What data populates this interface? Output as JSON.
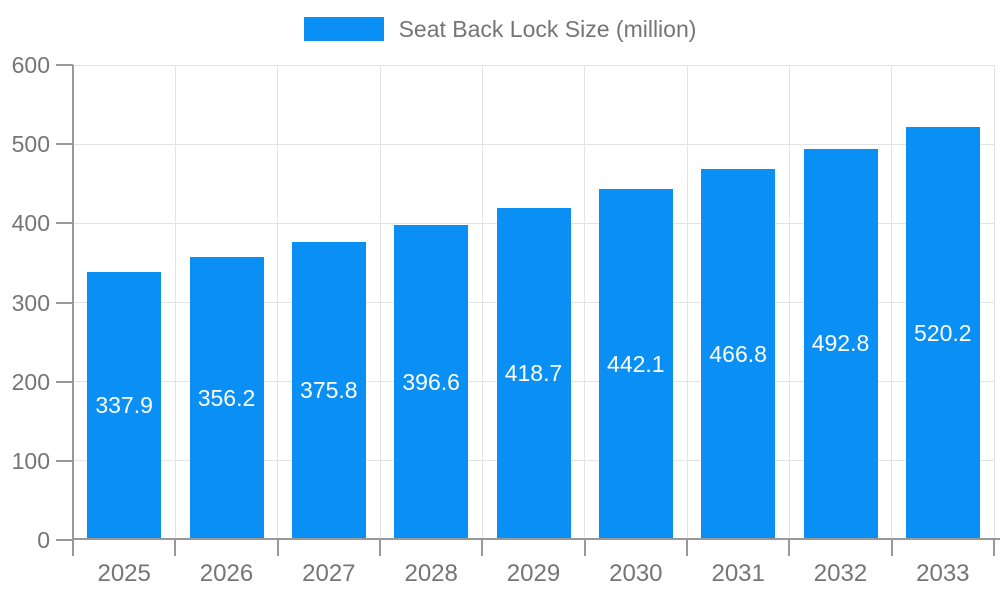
{
  "chart_data": {
    "type": "bar",
    "title": "Seat Back Lock Size (million)",
    "legend_position": "top",
    "categories": [
      "2025",
      "2026",
      "2027",
      "2028",
      "2029",
      "2030",
      "2031",
      "2032",
      "2033"
    ],
    "series": [
      {
        "name": "Seat Back Lock Size (million)",
        "values": [
          337.9,
          356.2,
          375.8,
          396.6,
          418.7,
          442.1,
          466.8,
          492.8,
          520.2
        ]
      }
    ],
    "value_labels": [
      "337.9",
      "356.2",
      "375.8",
      "396.6",
      "418.7",
      "442.1",
      "466.8",
      "492.8",
      "520.2"
    ],
    "xlabel": "",
    "ylabel": "",
    "ylim": [
      0,
      600
    ],
    "yticks": [
      0,
      100,
      200,
      300,
      400,
      500,
      600
    ],
    "grid": "on",
    "colors": {
      "bar": "#0a90f5",
      "axis": "#999999",
      "tick_label": "#757575",
      "grid": "#e3e3e3",
      "value_label": "#ffffff",
      "background": "#ffffff"
    }
  }
}
